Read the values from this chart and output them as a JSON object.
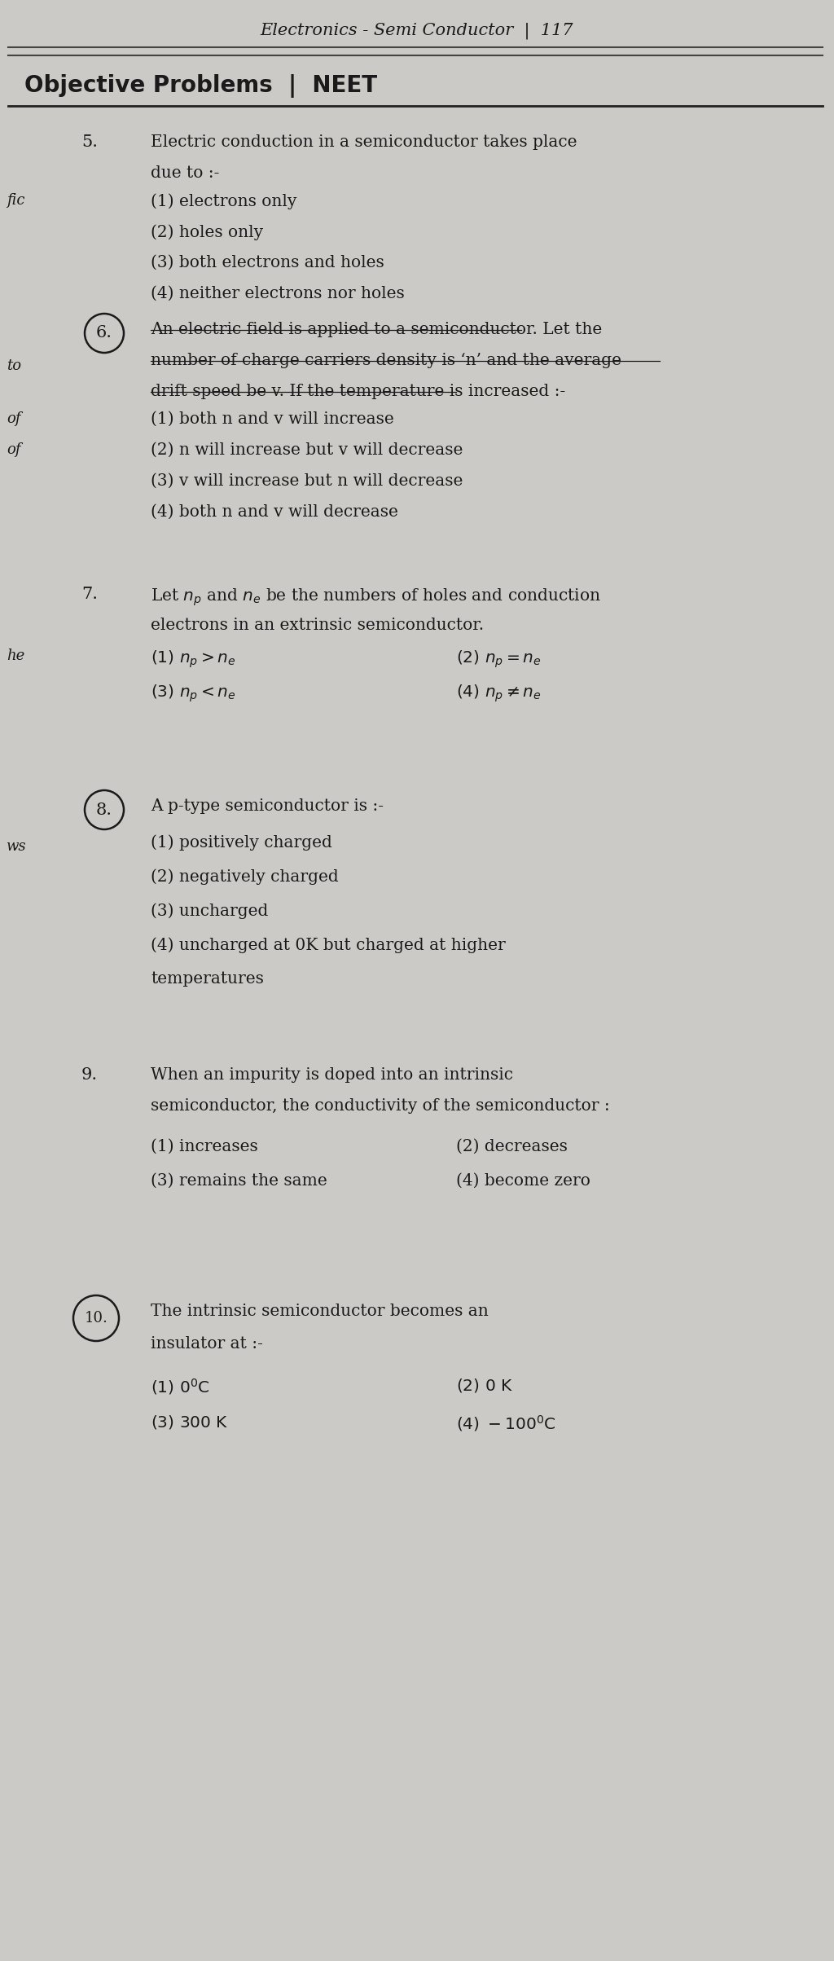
{
  "bg_color": "#cccac6",
  "text_color": "#1a1a1a",
  "header_text": "Electronics - Semi Conductor  |  117",
  "section_title": "Objective Problems  |  NEET",
  "q5_num": "5.",
  "q5_line1": "Electric conduction in a semiconductor takes place",
  "q5_line2": "due to :-",
  "q5_side": "fic",
  "q5_opts": [
    "(1) electrons only",
    "(2) holes only",
    "(3) both electrons and holes",
    "(4) neither electrons nor holes"
  ],
  "q6_num": "6.",
  "q6_line1": "An electric field is applied to a semiconductor. Let the",
  "q6_line2": "number of charge carriers density is ‘n’ and the average",
  "q6_line3": "drift speed be v. If the temperature is increased :-",
  "q6_side1": "to",
  "q6_side2": "of",
  "q6_side3": "of",
  "q6_opts": [
    "(1) both n and v will increase",
    "(2) n will increase but v will decrease",
    "(3) v will increase but n will decrease",
    "(4) both n and v will decrease"
  ],
  "q7_num": "7.",
  "q7_line1": "Let $n_p$ and $n_e$ be the numbers of holes and conduction",
  "q7_line2": "electrons in an extrinsic semiconductor.",
  "q7_side": "he",
  "q7_opts": [
    "$(1)$ $n_p > n_e$",
    "$(2)$ $n_p = n_e$",
    "$(3)$ $n_p < n_e$",
    "$(4)$ $n_p \\neq n_e$"
  ],
  "q8_num": "8.",
  "q8_line1": "A p-type semiconductor is :-",
  "q8_side": "ws",
  "q8_opts": [
    "(1) positively charged",
    "(2) negatively charged",
    "(3) uncharged",
    "(4) uncharged at 0K but charged at higher",
    "temperatures"
  ],
  "q9_num": "9.",
  "q9_line1": "When an impurity is doped into an intrinsic",
  "q9_line2": "semiconductor, the conductivity of the semiconductor :",
  "q9_opts": [
    "(1) increases",
    "(2) decreases",
    "(3) remains the same",
    "(4) become zero"
  ],
  "q10_num": "10.",
  "q10_line1": "The intrinsic semiconductor becomes an",
  "q10_line2": "insulator at :-",
  "q10_opts": [
    "$(1)$ $0^{0}$C",
    "$(2)$ $0$ K",
    "$(3)$ $300$ K",
    "$(4)$ $-100^{0}$C"
  ]
}
